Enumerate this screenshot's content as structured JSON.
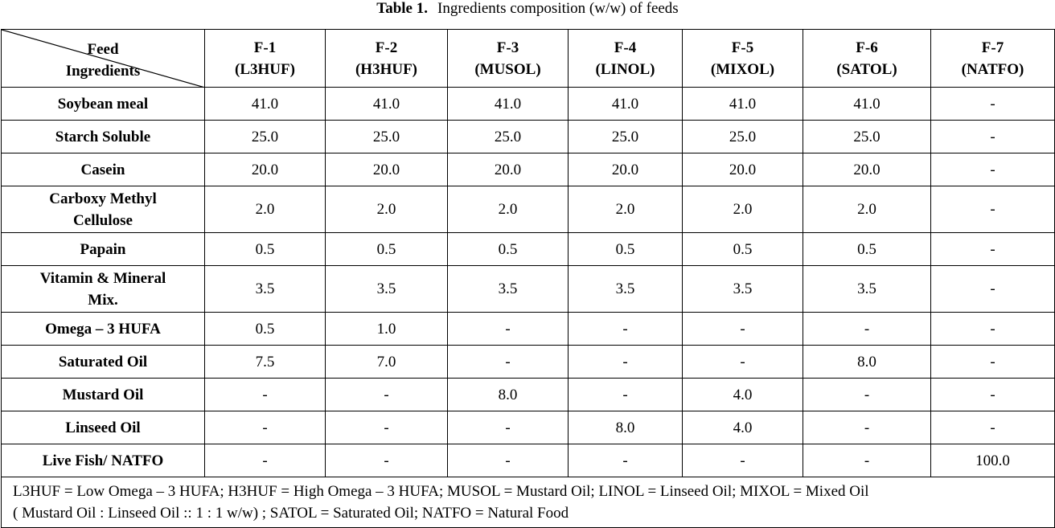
{
  "caption": {
    "label": "Table 1.",
    "text": "Ingredients composition (w/w) of feeds"
  },
  "header": {
    "corner_top": "Feed",
    "corner_bottom": "Ingredients",
    "columns": [
      {
        "code": "F-1",
        "name": "(L3HUF)"
      },
      {
        "code": "F-2",
        "name": "(H3HUF)"
      },
      {
        "code": "F-3",
        "name": "(MUSOL)"
      },
      {
        "code": "F-4",
        "name": "(LINOL)"
      },
      {
        "code": "F-5",
        "name": "(MIXOL)"
      },
      {
        "code": "F-6",
        "name": "(SATOL)"
      },
      {
        "code": "F-7",
        "name": "(NATFO)"
      }
    ]
  },
  "rows": [
    {
      "label": [
        "Soybean meal"
      ],
      "values": [
        "41.0",
        "41.0",
        "41.0",
        "41.0",
        "41.0",
        "41.0",
        "-"
      ]
    },
    {
      "label": [
        "Starch Soluble"
      ],
      "values": [
        "25.0",
        "25.0",
        "25.0",
        "25.0",
        "25.0",
        "25.0",
        "-"
      ]
    },
    {
      "label": [
        "Casein"
      ],
      "values": [
        "20.0",
        "20.0",
        "20.0",
        "20.0",
        "20.0",
        "20.0",
        "-"
      ]
    },
    {
      "label": [
        "Carboxy Methyl",
        "Cellulose"
      ],
      "values": [
        "2.0",
        "2.0",
        "2.0",
        "2.0",
        "2.0",
        "2.0",
        "-"
      ]
    },
    {
      "label": [
        "Papain"
      ],
      "values": [
        "0.5",
        "0.5",
        "0.5",
        "0.5",
        "0.5",
        "0.5",
        "-"
      ]
    },
    {
      "label": [
        "Vitamin & Mineral",
        "Mix."
      ],
      "values": [
        "3.5",
        "3.5",
        "3.5",
        "3.5",
        "3.5",
        "3.5",
        "-"
      ]
    },
    {
      "label": [
        "Omega – 3 HUFA"
      ],
      "values": [
        "0.5",
        "1.0",
        "-",
        "-",
        "-",
        "-",
        "-"
      ]
    },
    {
      "label": [
        "Saturated Oil"
      ],
      "values": [
        "7.5",
        "7.0",
        "-",
        "-",
        "-",
        "8.0",
        "-"
      ]
    },
    {
      "label": [
        "Mustard Oil"
      ],
      "values": [
        "-",
        "-",
        "8.0",
        "-",
        "4.0",
        "-",
        "-"
      ]
    },
    {
      "label": [
        "Linseed Oil"
      ],
      "values": [
        "-",
        "-",
        "-",
        "8.0",
        "4.0",
        "-",
        "-"
      ]
    },
    {
      "label": [
        "Live Fish/ NATFO"
      ],
      "values": [
        "-",
        "-",
        "-",
        "-",
        "-",
        "-",
        "100.0"
      ]
    }
  ],
  "footnote": {
    "line1": "L3HUF = Low Omega – 3 HUFA; H3HUF = High Omega – 3 HUFA; MUSOL = Mustard Oil; LINOL = Linseed Oil; MIXOL = Mixed Oil",
    "line2": "( Mustard Oil : Linseed Oil :: 1 : 1 w/w) ; SATOL = Saturated Oil; NATFO = Natural Food"
  }
}
